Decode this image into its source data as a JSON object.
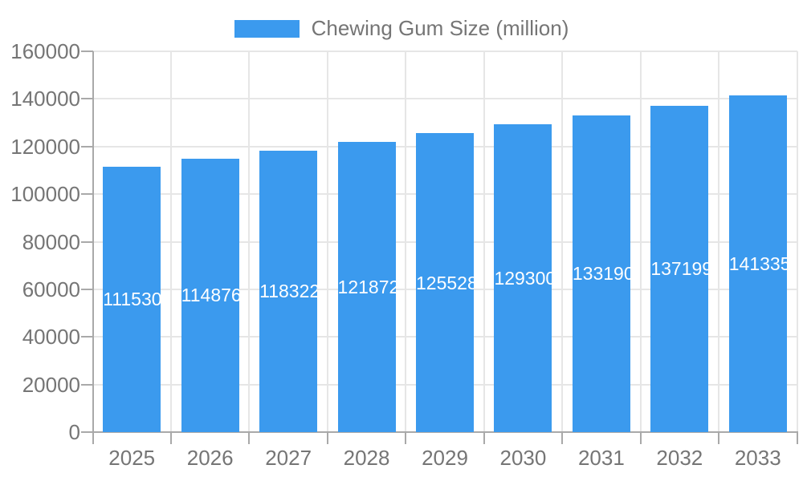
{
  "legend": {
    "label": "Chewing Gum Size (million)"
  },
  "chart_data": {
    "type": "bar",
    "title": "Chewing Gum Size (million)",
    "categories": [
      "2025",
      "2026",
      "2027",
      "2028",
      "2029",
      "2030",
      "2031",
      "2032",
      "2033"
    ],
    "series": [
      {
        "name": "Chewing Gum Size (million)",
        "values": [
          111530,
          114876,
          118322,
          121872,
          125528,
          129300,
          133190,
          137199,
          141335
        ]
      }
    ],
    "value_labels": [
      "111530",
      "114876",
      "118322",
      "121872",
      "125528",
      "129300",
      "133190",
      "137199",
      "141335"
    ],
    "yticks": [
      0,
      20000,
      40000,
      60000,
      80000,
      100000,
      120000,
      140000,
      160000
    ],
    "ylim": [
      0,
      160000
    ],
    "ytick_step": 20000,
    "xlabel": "",
    "ylabel": "",
    "grid": true,
    "legend_position": "top-center",
    "value_label_position": "inside-center",
    "colors": {
      "bar": "#3b9aee",
      "value_label": "#ffffff",
      "axis_text": "#757575",
      "axis_line": "#a9a9a9",
      "gridline": "#e6e6e6",
      "background": "#ffffff"
    }
  }
}
